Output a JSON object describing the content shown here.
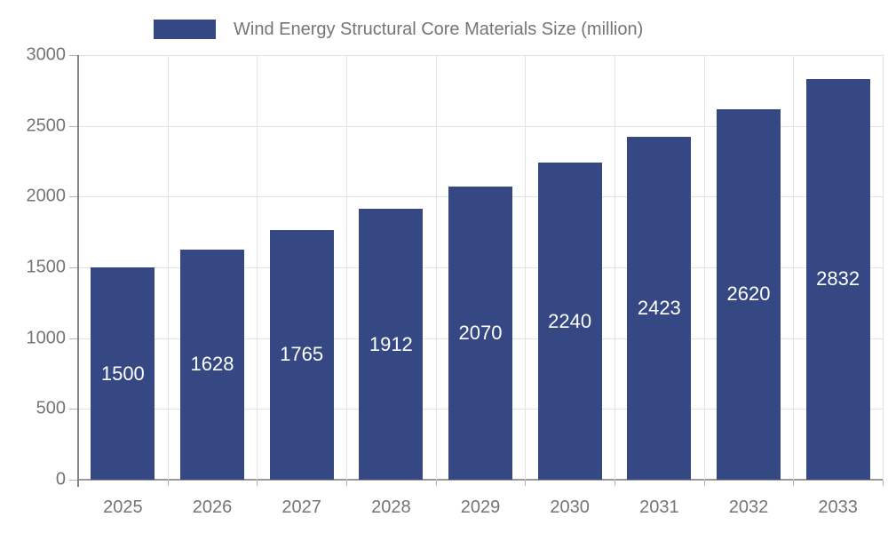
{
  "legend": {
    "label": "Wind Energy Structural Core Materials Size (million)"
  },
  "chart_data": {
    "type": "bar",
    "title": "Wind Energy Structural Core Materials Size (million)",
    "categories": [
      "2025",
      "2026",
      "2027",
      "2028",
      "2029",
      "2030",
      "2031",
      "2032",
      "2033"
    ],
    "values": [
      1500,
      1628,
      1765,
      1912,
      2070,
      2240,
      2423,
      2620,
      2832
    ],
    "xlabel": "",
    "ylabel": "",
    "ylim": [
      0,
      3000
    ],
    "yticks": [
      0,
      500,
      1000,
      1500,
      2000,
      2500,
      3000
    ],
    "grid": true,
    "legend_position": "top",
    "colors": {
      "bar": "#364884",
      "value_label": "#ffffff",
      "axis_text": "#757575",
      "gridline": "#e3e3e3",
      "axis_line": "#848484",
      "baseline": "#9a9a9a",
      "tick": "#b3b3b3"
    }
  }
}
